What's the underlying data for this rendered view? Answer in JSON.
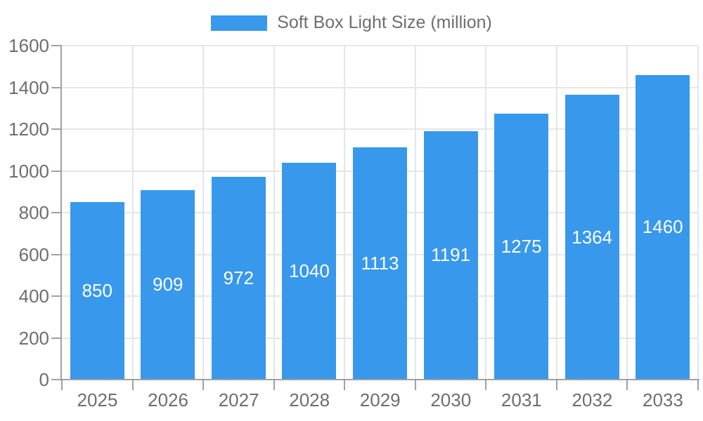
{
  "chart_data": {
    "type": "bar",
    "title": "Soft Box Light Size (million)",
    "categories": [
      "2025",
      "2026",
      "2027",
      "2028",
      "2029",
      "2030",
      "2031",
      "2032",
      "2033"
    ],
    "values": [
      850,
      909,
      972,
      1040,
      1113,
      1191,
      1275,
      1364,
      1460
    ],
    "xlabel": "",
    "ylabel": "",
    "ylim": [
      0,
      1600
    ],
    "yticks": [
      0,
      200,
      400,
      600,
      800,
      1000,
      1200,
      1400,
      1600
    ],
    "grid": true,
    "legend_position": "top-center",
    "legend_entries": [
      "Soft Box Light Size (million)"
    ],
    "value_labels_inside_bars": true
  },
  "legend": {
    "label": "Soft Box Light Size (million)"
  },
  "colors": {
    "bar": "#3898EC",
    "bar_label": "#FFFFFF",
    "grid": "#E6E6E6",
    "axis": "#A0A0A0",
    "tick_text": "#6E6E6E",
    "legend_text": "#6E6E6E",
    "background": "#FFFFFF"
  }
}
